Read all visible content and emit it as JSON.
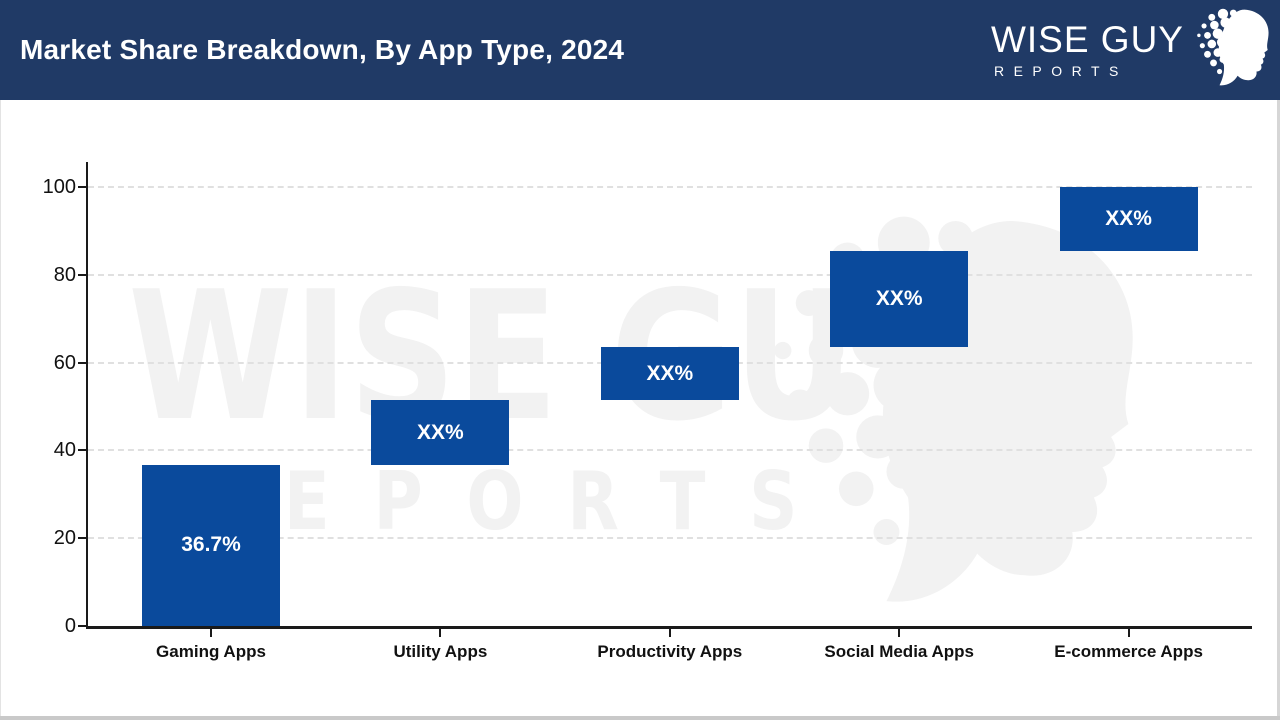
{
  "header": {
    "title": "Market Share Breakdown, By App Type, 2024",
    "logo_line1": "WISE GUY",
    "logo_line2": "REPORTS"
  },
  "watermark": {
    "line1": "WISE GUY",
    "line2": "REPORTS"
  },
  "colors": {
    "header_bg": "#203a66",
    "bar": "#0a4a9c",
    "grid": "#e0e0e0",
    "axis": "#1a1a1a",
    "bar_label": "#ffffff",
    "watermark": "#f2f2f2"
  },
  "chart_data": {
    "type": "bar",
    "subtype": "waterfall",
    "title": "Market Share Breakdown, By App Type, 2024",
    "xlabel": "",
    "ylabel": "",
    "ylim": [
      0,
      100
    ],
    "yticks": [
      0,
      20,
      40,
      60,
      80,
      100
    ],
    "grid": "horizontal-dashed",
    "legend": "none",
    "categories": [
      "Gaming Apps",
      "Utility Apps",
      "Productivity Apps",
      "Social Media Apps",
      "E-commerce Apps"
    ],
    "segments": [
      {
        "category": "Gaming Apps",
        "label": "36.7%",
        "value": 36.7,
        "start": 0,
        "end": 36.7
      },
      {
        "category": "Utility Apps",
        "label": "XX%",
        "value": 14.7,
        "start": 36.7,
        "end": 51.4
      },
      {
        "category": "Productivity Apps",
        "label": "XX%",
        "value": 12.1,
        "start": 51.4,
        "end": 63.5
      },
      {
        "category": "Social Media Apps",
        "label": "XX%",
        "value": 21.9,
        "start": 63.5,
        "end": 85.4
      },
      {
        "category": "E-commerce Apps",
        "label": "XX%",
        "value": 14.6,
        "start": 85.4,
        "end": 100
      }
    ]
  }
}
